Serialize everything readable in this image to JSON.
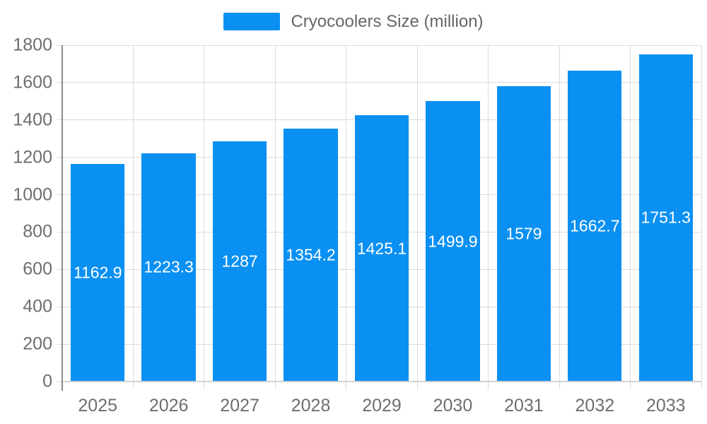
{
  "chart_data": {
    "type": "bar",
    "title": "",
    "legend_label": "Cryocoolers Size (million)",
    "legend_position": "top",
    "categories": [
      "2025",
      "2026",
      "2027",
      "2028",
      "2029",
      "2030",
      "2031",
      "2032",
      "2033"
    ],
    "series": [
      {
        "name": "Cryocoolers Size (million)",
        "values": [
          1162.9,
          1223.3,
          1287,
          1354.2,
          1425.1,
          1499.9,
          1579,
          1662.7,
          1751.3
        ],
        "value_labels": [
          "1162.9",
          "1223.3",
          "1287",
          "1354.2",
          "1425.1",
          "1499.9",
          "1579",
          "1662.7",
          "1751.3"
        ]
      }
    ],
    "xlabel": "",
    "ylabel": "",
    "ylim": [
      0,
      1800
    ],
    "ytick_step": 200,
    "y_tick_labels": [
      "0",
      "200",
      "400",
      "600",
      "800",
      "1000",
      "1200",
      "1400",
      "1600",
      "1800"
    ],
    "grid": true,
    "colors": {
      "bar": "#0a90f2",
      "grid": "#dbdbdb",
      "axis_line": "#8a8a8a",
      "baseline": "#c9c9c9",
      "axis_text": "#6e6e6e",
      "legend_text": "#666666",
      "bar_label_text": "#ffffff",
      "background": "#ffffff"
    }
  }
}
